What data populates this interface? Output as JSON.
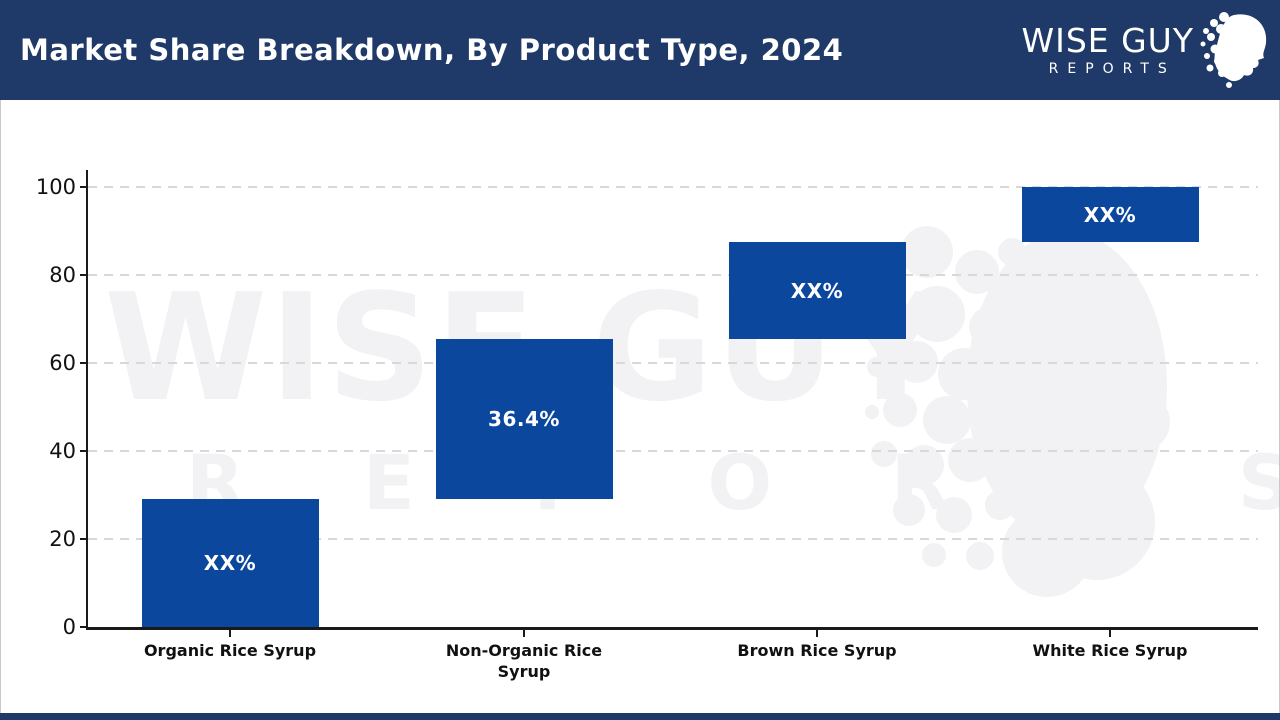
{
  "header": {
    "title": "Market Share Breakdown, By Product Type, 2024",
    "logo": {
      "line1": "WISE GUY",
      "line2": "REPORTS"
    }
  },
  "watermark": {
    "line1": "WISE GUY",
    "line2": "R E P O R T S"
  },
  "chart_data": {
    "type": "bar",
    "subtype": "floating-waterfall",
    "title": "Market Share Breakdown, By Product Type, 2024",
    "categories": [
      "Organic Rice Syrup",
      "Non-Organic Rice Syrup",
      "Brown Rice Syrup",
      "White Rice Syrup"
    ],
    "segments": [
      {
        "category": "Organic Rice Syrup",
        "start": 0,
        "end": 29,
        "increment": 29,
        "label": "XX%"
      },
      {
        "category": "Non-Organic Rice Syrup",
        "start": 29,
        "end": 65.4,
        "increment": 36.4,
        "label": "36.4%"
      },
      {
        "category": "Brown Rice Syrup",
        "start": 65.4,
        "end": 87.5,
        "increment": 22.1,
        "label": "XX%"
      },
      {
        "category": "White Rice Syrup",
        "start": 87.5,
        "end": 100,
        "increment": 12.5,
        "label": "XX%"
      }
    ],
    "ylim": [
      0,
      100
    ],
    "yticks": [
      0,
      20,
      40,
      60,
      80,
      100
    ],
    "xlabel": "",
    "ylabel": "",
    "grid": "horizontal-dashed",
    "legend": "none"
  },
  "colors": {
    "header_bg": "#1F3A68",
    "footer_bg": "#1F3A68",
    "bar": "#0C479E",
    "bar_label": "#ffffff",
    "axis": "#1a1a1a",
    "grid": "#d8d8d8",
    "watermark": "#f2f2f5",
    "page_border": "#c9c9c9"
  }
}
